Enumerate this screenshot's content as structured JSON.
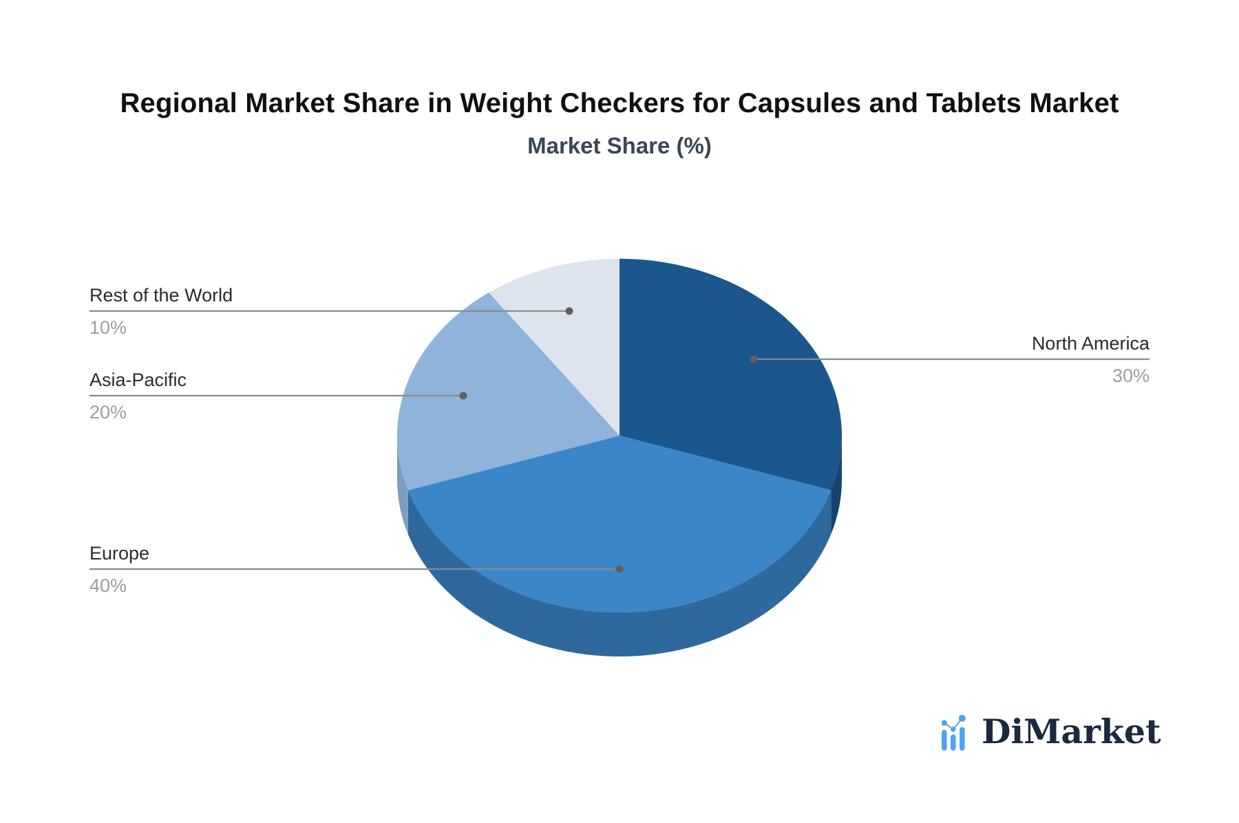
{
  "chart_data": {
    "type": "pie",
    "style": "3d",
    "title": "Regional Market Share in Weight Checkers for Capsules and Tablets Market",
    "subtitle": "Market Share (%)",
    "unit": "%",
    "direction": "clockwise",
    "start_angle": "12-oclock",
    "legend_position": "callout-labels",
    "slices": [
      {
        "label": "North America",
        "value": 30,
        "color": "#1B568C",
        "side_color": "#15436D"
      },
      {
        "label": "Europe",
        "value": 40,
        "color": "#3B86C9",
        "side_color": "#2E689D"
      },
      {
        "label": "Asia-Pacific",
        "value": 20,
        "color": "#8FB3DA",
        "side_color": "#7D9CBE"
      },
      {
        "label": "Rest of the World",
        "value": 10,
        "color": "#DEE4EE",
        "side_color": "#C2CBD8"
      }
    ]
  },
  "branding": {
    "name": "DiMarket",
    "icon": "bar-chart-trend-icon",
    "icon_color": "#4FA3F0",
    "text_color": "#1B2940"
  },
  "colors": {
    "background": "#FFFFFF",
    "title_text": "#101010",
    "subtitle_text": "#3A4654",
    "label_text": "#2A2A2A",
    "value_text": "#9C9C9C",
    "leader_line": "#8A8A8A",
    "leader_dot": "#606060"
  }
}
